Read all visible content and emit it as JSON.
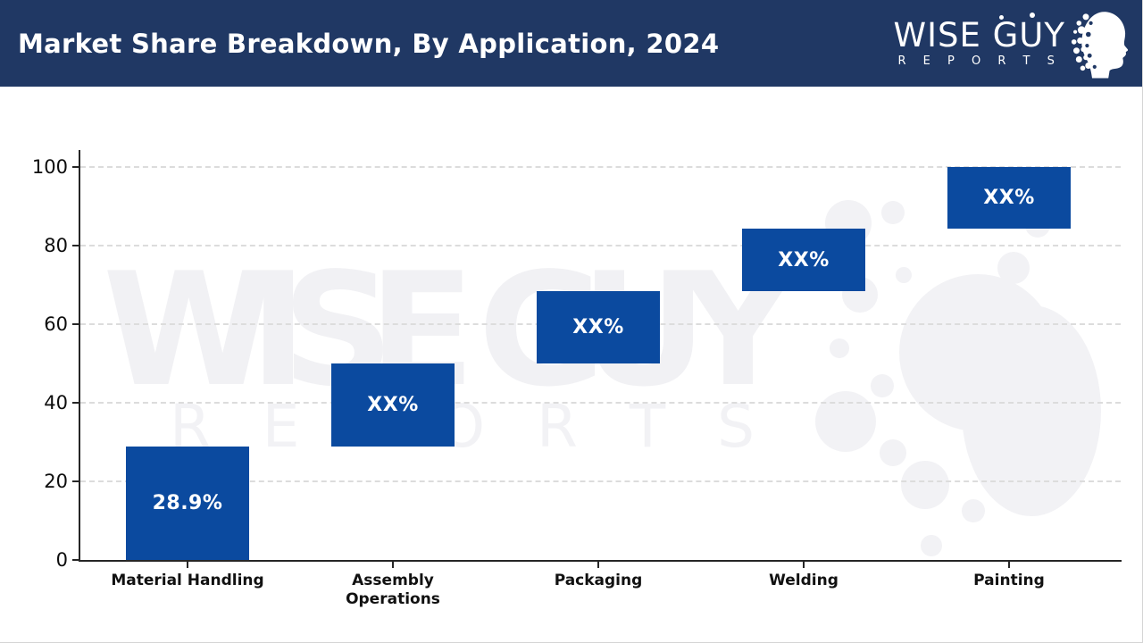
{
  "header": {
    "title": "Market Share Breakdown, By Application, 2024",
    "logo": {
      "line1": "WISE GUY",
      "line2": "R E P O R T S"
    }
  },
  "watermark": {
    "line1": "WISE GUY",
    "line2": "R E P O R T S"
  },
  "colors": {
    "header_bg": "#203864",
    "bar": "#0b4a9f",
    "bar_label": "#ffffff",
    "grid": "#dcdcdc",
    "axis": "#262626",
    "watermark": "#f1f1f4"
  },
  "chart_data": {
    "type": "bar",
    "subtype": "floating-waterfall",
    "title": "Market Share Breakdown, By Application, 2024",
    "categories": [
      "Material Handling",
      "Assembly Operations",
      "Packaging",
      "Welding",
      "Painting"
    ],
    "tick_labels": [
      "Material Handling",
      "Assembly\nOperations",
      "Packaging",
      "Welding",
      "Painting"
    ],
    "bars": [
      {
        "category": "Material Handling",
        "start": 0,
        "end": 28.9,
        "label": "28.9%"
      },
      {
        "category": "Assembly Operations",
        "start": 28.9,
        "end": 50.0,
        "label": "XX%"
      },
      {
        "category": "Packaging",
        "start": 50.0,
        "end": 68.4,
        "label": "XX%"
      },
      {
        "category": "Welding",
        "start": 68.4,
        "end": 84.3,
        "label": "XX%"
      },
      {
        "category": "Painting",
        "start": 84.3,
        "end": 100.0,
        "label": "XX%"
      }
    ],
    "xlabel": "",
    "ylabel": "",
    "ylim": [
      0,
      100
    ],
    "yticks": [
      0,
      20,
      40,
      60,
      80,
      100
    ],
    "grid": "horizontal-dashed",
    "legend": "none"
  }
}
